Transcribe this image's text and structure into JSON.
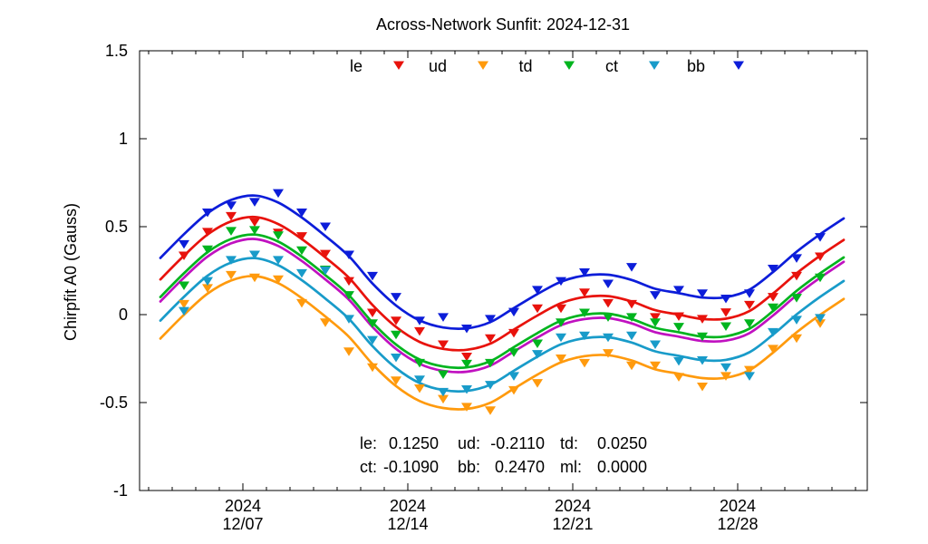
{
  "chart_data": {
    "type": "line",
    "title": "Across-Network Sunfit: 2024-12-31",
    "ylabel": "Chirpfit A0 (Gauss)",
    "xlabel": "",
    "ylim": [
      -1,
      1.5
    ],
    "grid": false,
    "legend_position": "top-center-inside",
    "y_ticks": [
      {
        "value": -1,
        "label": "-1"
      },
      {
        "value": -0.5,
        "label": "-0.5"
      },
      {
        "value": 0,
        "label": "0"
      },
      {
        "value": 0.5,
        "label": "0.5"
      },
      {
        "value": 1,
        "label": "1"
      },
      {
        "value": 1.5,
        "label": "1.5"
      }
    ],
    "x_ticks": [
      {
        "day": 4,
        "year": "2024",
        "date": "12/07"
      },
      {
        "day": 11,
        "year": "2024",
        "date": "12/14"
      },
      {
        "day": 18,
        "year": "2024",
        "date": "12/21"
      },
      {
        "day": 25,
        "year": "2024",
        "date": "12/28"
      }
    ],
    "x_minor_day_range": [
      0,
      30
    ],
    "curve_days": [
      0.5,
      1.5,
      2.5,
      3.5,
      4.5,
      5.5,
      6.5,
      7.5,
      8.5,
      9.5,
      10.5,
      11.5,
      12.5,
      13.5,
      14.5,
      15.5,
      16.5,
      17.5,
      18.5,
      19.5,
      20.5,
      21.5,
      22.5,
      23.5,
      24.5,
      25.5,
      26.5,
      27.5,
      28.5,
      29.5
    ],
    "base_curve": [
      0.075,
      0.21,
      0.33,
      0.405,
      0.43,
      0.39,
      0.305,
      0.2,
      0.085,
      -0.07,
      -0.195,
      -0.28,
      -0.32,
      -0.325,
      -0.29,
      -0.21,
      -0.13,
      -0.06,
      -0.025,
      -0.02,
      -0.05,
      -0.1,
      -0.125,
      -0.15,
      -0.148,
      -0.105,
      -0.005,
      0.11,
      0.21,
      0.3
    ],
    "marker_days": [
      1.5,
      2.5,
      3.5,
      4.5,
      5.5,
      6.5,
      7.5,
      8.5,
      9.5,
      10.5,
      11.5,
      12.5,
      13.5,
      14.5,
      15.5,
      16.5,
      17.5,
      18.5,
      19.5,
      20.5,
      21.5,
      22.5,
      23.5,
      24.5,
      25.5,
      26.5,
      27.5,
      28.5
    ],
    "series": [
      {
        "name": "le",
        "color": "#e8120c",
        "fit_a0": 0.125,
        "markers": [
          0.335,
          0.47,
          0.56,
          0.525,
          0.465,
          0.445,
          0.345,
          0.19,
          0.01,
          -0.035,
          -0.095,
          -0.17,
          -0.24,
          -0.135,
          -0.105,
          0.035,
          0.035,
          0.125,
          0.065,
          0.06,
          -0.015,
          -0.01,
          -0.025,
          0.012,
          0.055,
          0.1,
          0.22,
          0.33
        ]
      },
      {
        "name": "ud",
        "color": "#ff9a0d",
        "fit_a0": -0.211,
        "markers": [
          0.06,
          0.15,
          0.225,
          0.21,
          0.2,
          0.065,
          -0.045,
          -0.21,
          -0.3,
          -0.375,
          -0.42,
          -0.48,
          -0.525,
          -0.545,
          -0.43,
          -0.39,
          -0.25,
          -0.275,
          -0.22,
          -0.29,
          -0.29,
          -0.355,
          -0.41,
          -0.35,
          -0.315,
          -0.195,
          -0.135,
          -0.05
        ]
      },
      {
        "name": "td",
        "color": "#00b41e",
        "fit_a0": 0.025,
        "markers": [
          0.165,
          0.37,
          0.475,
          0.48,
          0.45,
          0.365,
          0.255,
          0.11,
          -0.05,
          -0.115,
          -0.275,
          -0.34,
          -0.28,
          -0.275,
          -0.215,
          -0.165,
          -0.045,
          0.01,
          -0.015,
          -0.015,
          -0.045,
          -0.07,
          -0.125,
          -0.067,
          -0.05,
          0.04,
          0.095,
          0.21
        ]
      },
      {
        "name": "ct",
        "color": "#189bc9",
        "fit_a0": -0.109,
        "markers": [
          0.02,
          0.19,
          0.31,
          0.34,
          0.31,
          0.235,
          0.25,
          -0.025,
          -0.145,
          -0.245,
          -0.37,
          -0.44,
          -0.425,
          -0.4,
          -0.35,
          -0.225,
          -0.13,
          -0.12,
          -0.13,
          -0.12,
          -0.17,
          -0.265,
          -0.26,
          -0.3,
          -0.35,
          -0.1,
          -0.03,
          -0.02
        ]
      },
      {
        "name": "bb",
        "color": "#0c1dd9",
        "fit_a0": 0.247,
        "markers": [
          0.4,
          0.58,
          0.62,
          0.64,
          0.69,
          0.58,
          0.5,
          0.34,
          0.22,
          0.1,
          -0.035,
          -0.015,
          -0.08,
          -0.025,
          0.015,
          0.14,
          0.19,
          0.24,
          0.175,
          0.27,
          0.11,
          0.14,
          0.12,
          0.09,
          0.12,
          0.26,
          0.32,
          0.44
        ]
      },
      {
        "name": "ml",
        "color": "#c011c0",
        "fit_a0": 0.0,
        "markers": []
      }
    ],
    "fit_readout": [
      {
        "label": "le:",
        "value": "0.1250"
      },
      {
        "label": "ud:",
        "value": "-0.2110"
      },
      {
        "label": "td:",
        "value": "0.0250"
      },
      {
        "label": "ct:",
        "value": "-0.1090"
      },
      {
        "label": "bb:",
        "value": "0.2470"
      },
      {
        "label": "ml:",
        "value": "0.0000"
      }
    ]
  }
}
